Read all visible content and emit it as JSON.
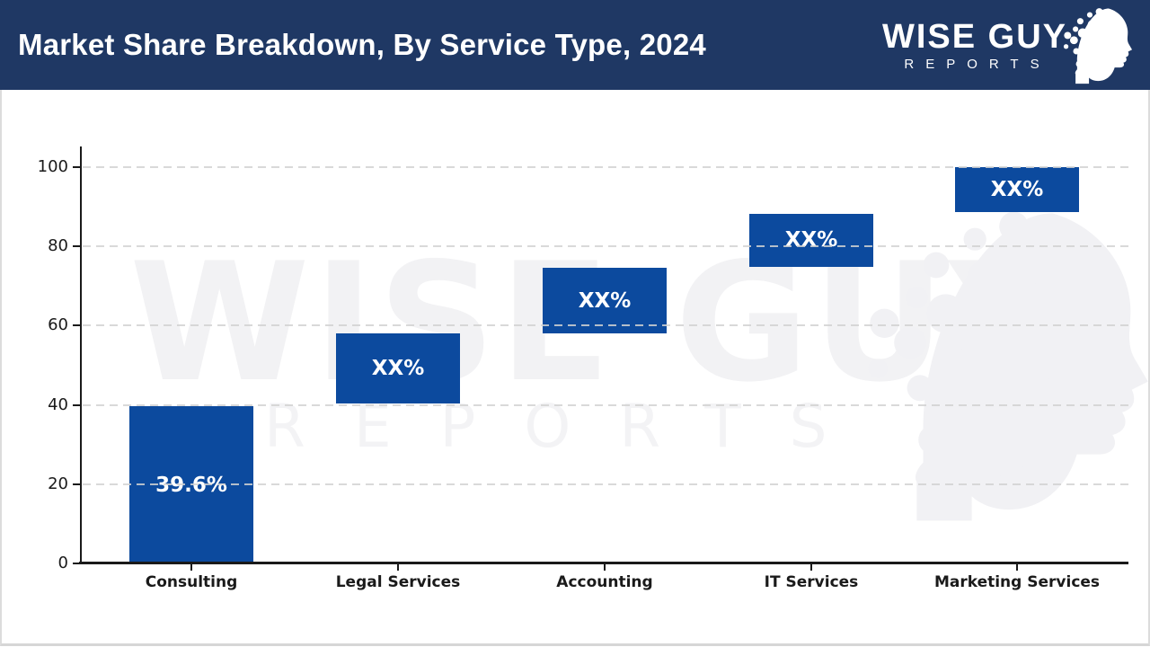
{
  "header": {
    "title": "Market Share Breakdown, By Service Type, 2024",
    "logo": {
      "line1": "WISE GUY",
      "line2": "REPORTS"
    }
  },
  "watermark": {
    "line1": "WISE GUY",
    "line2": "REPORTS"
  },
  "colors": {
    "header_bg": "#1f3864",
    "bar": "#0c4a9e",
    "grid": "#d2d2d2",
    "axis": "#1a1a1a",
    "bar_label_text": "#ffffff",
    "watermark": "#f2f2f4"
  },
  "chart_data": {
    "type": "bar",
    "subtype": "waterfall",
    "title": "Market Share Breakdown, By Service Type, 2024",
    "categories": [
      "Consulting",
      "Legal Services",
      "Accounting",
      "IT Services",
      "Marketing Services"
    ],
    "segments": [
      {
        "category": "Consulting",
        "start": 0,
        "end": 39.6,
        "label": "39.6%"
      },
      {
        "category": "Legal Services",
        "start": 40.4,
        "end": 58.1,
        "label": "XX%"
      },
      {
        "category": "Accounting",
        "start": 58.1,
        "end": 74.5,
        "label": "XX%"
      },
      {
        "category": "IT Services",
        "start": 74.8,
        "end": 88.3,
        "label": "XX%"
      },
      {
        "category": "Marketing Services",
        "start": 88.6,
        "end": 100.0,
        "label": "XX%"
      }
    ],
    "bar_labels": [
      "39.6%",
      "XX%",
      "XX%",
      "XX%",
      "XX%"
    ],
    "xlabel": "",
    "ylabel": "",
    "ylim": [
      0,
      105
    ],
    "yticks": [
      0,
      20,
      40,
      60,
      80,
      100
    ],
    "grid": "horizontal-dashed",
    "legend": "none"
  }
}
